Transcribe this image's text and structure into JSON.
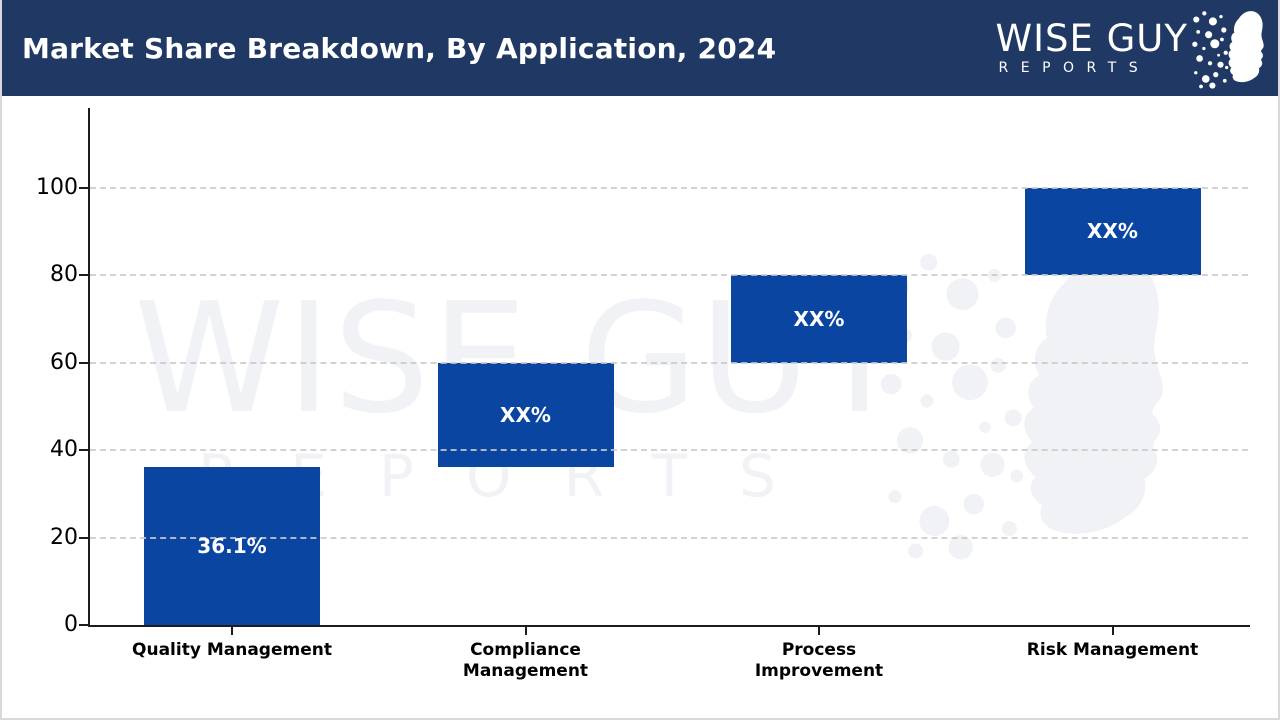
{
  "header": {
    "title": "Market Share Breakdown, By Application, 2024",
    "brand": {
      "line1": "WISE GUY",
      "line2": "REPORTS"
    }
  },
  "watermark": {
    "line1": "WISE GUY",
    "line2": "REPORTS"
  },
  "colors": {
    "header_bg": "#203864",
    "bar": "#0b45a2",
    "grid": "#cbcbcb",
    "axis": "#1c1c1c",
    "text": "#000000",
    "bar_label": "#ffffff",
    "watermark": "#f1f2f6",
    "border": "#d9d9d9"
  },
  "chart_data": {
    "type": "bar",
    "variant": "floating-waterfall",
    "title": "Market Share Breakdown, By Application, 2024",
    "categories": [
      "Quality Management",
      "Compliance Management",
      "Process Improvement",
      "Risk Management"
    ],
    "category_lines": [
      [
        "Quality Management"
      ],
      [
        "Compliance",
        "Management"
      ],
      [
        "Process",
        "Improvement"
      ],
      [
        "Risk Management"
      ]
    ],
    "segments": [
      {
        "category": "Quality Management",
        "from": 0,
        "to": 36.1,
        "label": "36.1%"
      },
      {
        "category": "Compliance Management",
        "from": 36.1,
        "to": 60,
        "label": "XX%"
      },
      {
        "category": "Process Improvement",
        "from": 60,
        "to": 80,
        "label": "XX%"
      },
      {
        "category": "Risk Management",
        "from": 80,
        "to": 100,
        "label": "XX%"
      }
    ],
    "values": [
      36.1,
      23.9,
      20,
      20
    ],
    "ylim": [
      0,
      100
    ],
    "yticks": [
      0,
      20,
      40,
      60,
      80,
      100
    ],
    "xlabel": "",
    "ylabel": "",
    "grid": "dashed-horizontal",
    "legend": false,
    "bar_color": "#0b45a2"
  }
}
